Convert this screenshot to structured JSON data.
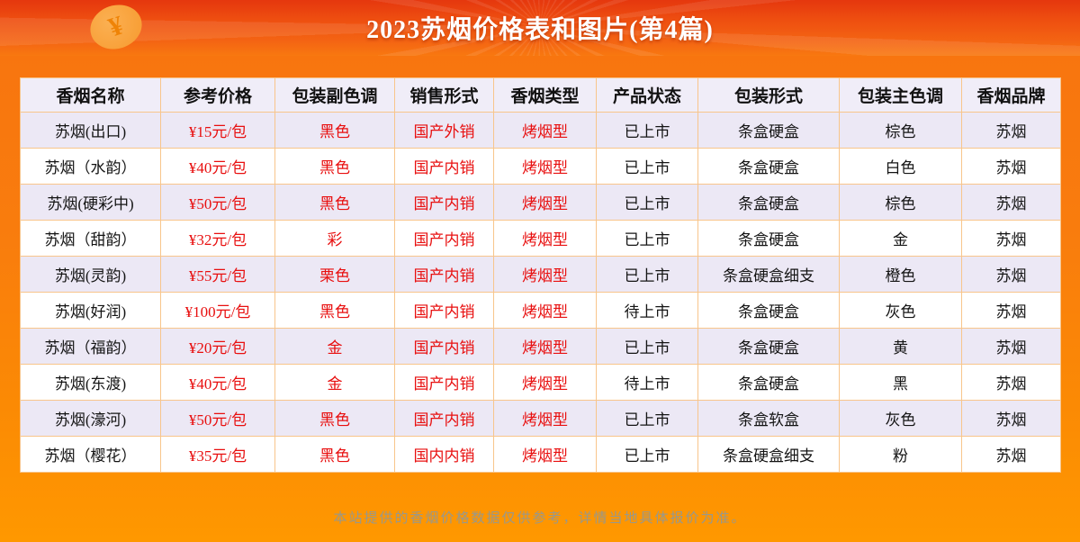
{
  "header": {
    "title": "2023苏烟价格表和图片(第4篇)",
    "coin_icon_symbol": "¥"
  },
  "colors": {
    "banner_top": "#e5370e",
    "background_orange": "#f97d0d",
    "background_bottom": "#ff9800",
    "table_border": "#f8c58b",
    "header_cell_bg": "#f0edf8",
    "odd_row_bg": "#ece8f5",
    "even_row_bg": "#ffffff",
    "red_text": "#e80f0f",
    "black_text": "#141414",
    "coin_fill": "#f79a2e"
  },
  "chart_data": {
    "type": "table",
    "title": "2023苏烟价格表和图片(第4篇)",
    "columns": [
      "香烟名称",
      "参考价格",
      "包装副色调",
      "销售形式",
      "香烟类型",
      "产品状态",
      "包装形式",
      "包装主色调",
      "香烟品牌"
    ],
    "red_column_indexes": [
      1,
      2,
      3,
      4
    ],
    "rows": [
      [
        "苏烟(出口)",
        "¥15元/包",
        "黑色",
        "国产外销",
        "烤烟型",
        "已上市",
        "条盒硬盒",
        "棕色",
        "苏烟"
      ],
      [
        "苏烟（水韵）",
        "¥40元/包",
        "黑色",
        "国产内销",
        "烤烟型",
        "已上市",
        "条盒硬盒",
        "白色",
        "苏烟"
      ],
      [
        "苏烟(硬彩中)",
        "¥50元/包",
        "黑色",
        "国产内销",
        "烤烟型",
        "已上市",
        "条盒硬盒",
        "棕色",
        "苏烟"
      ],
      [
        "苏烟（甜韵）",
        "¥32元/包",
        "彩",
        "国产内销",
        "烤烟型",
        "已上市",
        "条盒硬盒",
        "金",
        "苏烟"
      ],
      [
        "苏烟(灵韵)",
        "¥55元/包",
        "栗色",
        "国产内销",
        "烤烟型",
        "已上市",
        "条盒硬盒细支",
        "橙色",
        "苏烟"
      ],
      [
        "苏烟(好润)",
        "¥100元/包",
        "黑色",
        "国产内销",
        "烤烟型",
        "待上市",
        "条盒硬盒",
        "灰色",
        "苏烟"
      ],
      [
        "苏烟（福韵）",
        "¥20元/包",
        "金",
        "国产内销",
        "烤烟型",
        "已上市",
        "条盒硬盒",
        "黄",
        "苏烟"
      ],
      [
        "苏烟(东渡)",
        "¥40元/包",
        "金",
        "国产内销",
        "烤烟型",
        "待上市",
        "条盒硬盒",
        "黑",
        "苏烟"
      ],
      [
        "苏烟(濠河)",
        "¥50元/包",
        "黑色",
        "国产内销",
        "烤烟型",
        "已上市",
        "条盒软盒",
        "灰色",
        "苏烟"
      ],
      [
        "苏烟（樱花）",
        "¥35元/包",
        "黑色",
        "国内内销",
        "烤烟型",
        "已上市",
        "条盒硬盒细支",
        "粉",
        "苏烟"
      ]
    ]
  },
  "footer": {
    "note": "本站提供的香烟价格数据仅供参考，详情当地具体报价为准。"
  }
}
